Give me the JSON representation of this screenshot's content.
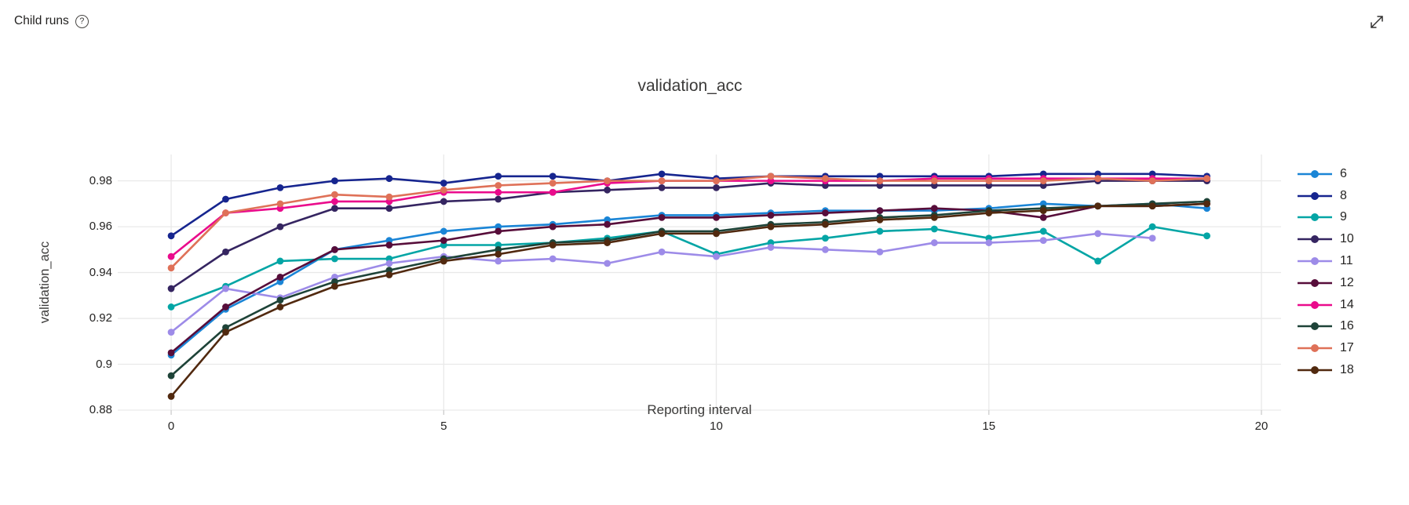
{
  "panel": {
    "title": "Child runs",
    "help_glyph": "?",
    "icons": {
      "help": "circled-question-mark",
      "expand": "diagonal-resize-arrows"
    }
  },
  "chart_data": {
    "type": "line",
    "title": "validation_acc",
    "xlabel": "Reporting interval",
    "ylabel": "validation_acc",
    "x_ticks": [
      "0",
      "5",
      "10",
      "15",
      "20"
    ],
    "x_tick_values": [
      0,
      5,
      10,
      15,
      20
    ],
    "y_ticks": [
      "0.88",
      "0.9",
      "0.92",
      "0.94",
      "0.96",
      "0.98"
    ],
    "y_tick_values": [
      0.88,
      0.9,
      0.92,
      0.94,
      0.96,
      0.98
    ],
    "xlim": [
      -0.98,
      20.36
    ],
    "ylim": [
      0.88,
      0.9915
    ],
    "grid": true,
    "legend_position": "right",
    "x": [
      0,
      1,
      2,
      3,
      4,
      5,
      6,
      7,
      8,
      9,
      10,
      11,
      12,
      13,
      14,
      15,
      16,
      17,
      18,
      19
    ],
    "series": [
      {
        "name": "6",
        "color": "#1a85d6",
        "values": [
          0.904,
          0.924,
          0.936,
          0.95,
          0.954,
          0.958,
          0.96,
          0.961,
          0.963,
          0.965,
          0.965,
          0.966,
          0.967,
          0.967,
          0.967,
          0.968,
          0.97,
          0.969,
          0.97,
          0.968
        ]
      },
      {
        "name": "8",
        "color": "#16258f",
        "values": [
          0.956,
          0.972,
          0.977,
          0.98,
          0.981,
          0.979,
          0.982,
          0.982,
          0.98,
          0.983,
          0.981,
          0.982,
          0.982,
          0.982,
          0.982,
          0.982,
          0.983,
          0.983,
          0.983,
          0.982
        ]
      },
      {
        "name": "9",
        "color": "#03a5a5",
        "values": [
          0.925,
          0.934,
          0.945,
          0.946,
          0.946,
          0.952,
          0.952,
          0.953,
          0.955,
          0.958,
          0.948,
          0.953,
          0.955,
          0.958,
          0.959,
          0.955,
          0.958,
          0.945,
          0.96,
          0.956
        ]
      },
      {
        "name": "10",
        "color": "#352561",
        "values": [
          0.933,
          0.949,
          0.96,
          0.968,
          0.968,
          0.971,
          0.972,
          0.975,
          0.976,
          0.977,
          0.977,
          0.979,
          0.978,
          0.978,
          0.978,
          0.978,
          0.978,
          0.98,
          0.98,
          0.98
        ]
      },
      {
        "name": "11",
        "color": "#9d8be8",
        "values": [
          0.914,
          0.933,
          0.929,
          0.938,
          0.944,
          0.947,
          0.945,
          0.946,
          0.944,
          0.949,
          0.947,
          0.951,
          0.95,
          0.949,
          0.953,
          0.953,
          0.954,
          0.957,
          0.955
        ]
      },
      {
        "name": "12",
        "color": "#570d3a",
        "values": [
          0.905,
          0.925,
          0.938,
          0.95,
          0.952,
          0.954,
          0.958,
          0.96,
          0.961,
          0.964,
          0.964,
          0.965,
          0.966,
          0.967,
          0.968,
          0.967,
          0.964,
          0.969,
          0.969,
          0.97
        ]
      },
      {
        "name": "14",
        "color": "#ea0b8c",
        "values": [
          0.947,
          0.966,
          0.968,
          0.971,
          0.971,
          0.975,
          0.975,
          0.975,
          0.979,
          0.98,
          0.98,
          0.98,
          0.98,
          0.98,
          0.981,
          0.981,
          0.981,
          0.981,
          0.981,
          0.981
        ]
      },
      {
        "name": "16",
        "color": "#1e4338",
        "values": [
          0.895,
          0.916,
          0.928,
          0.936,
          0.941,
          0.946,
          0.95,
          0.953,
          0.954,
          0.958,
          0.958,
          0.961,
          0.962,
          0.964,
          0.965,
          0.967,
          0.968,
          0.969,
          0.97,
          0.971
        ]
      },
      {
        "name": "17",
        "color": "#df7158",
        "values": [
          0.942,
          0.966,
          0.97,
          0.974,
          0.973,
          0.976,
          0.978,
          0.979,
          0.98,
          0.98,
          0.98,
          0.982,
          0.981,
          0.98,
          0.98,
          0.98,
          0.98,
          0.981,
          0.98,
          0.981
        ]
      },
      {
        "name": "18",
        "color": "#51290f",
        "values": [
          0.886,
          0.914,
          0.925,
          0.934,
          0.939,
          0.945,
          0.948,
          0.952,
          0.953,
          0.957,
          0.957,
          0.96,
          0.961,
          0.963,
          0.964,
          0.966,
          0.967,
          0.969,
          0.969,
          0.97
        ]
      }
    ],
    "style": {
      "grid_color": "#e9e9e9",
      "tick_color": "#cccccc",
      "line_width": 2.6,
      "marker_radius": 4.4
    }
  }
}
